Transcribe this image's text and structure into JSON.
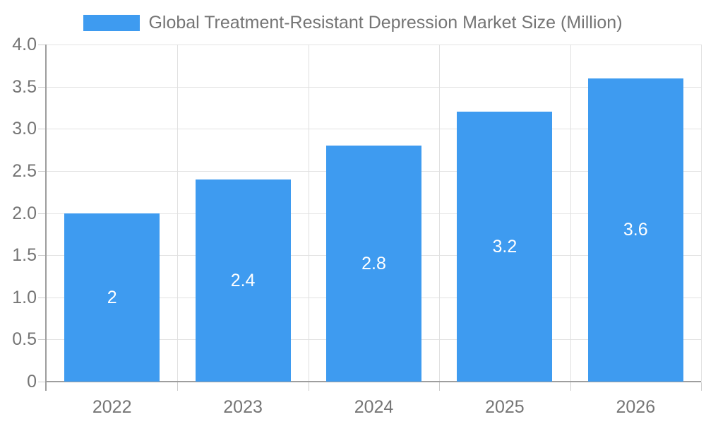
{
  "page": {
    "background": "#ffffff"
  },
  "legend": {
    "label": "Global Treatment-Resistant Depression Market Size (Million)",
    "swatch_color": "#3E9BF0"
  },
  "chart_data": {
    "type": "bar",
    "title": "Global Treatment-Resistant Depression Market Size (Million)",
    "categories": [
      "2022",
      "2023",
      "2024",
      "2025",
      "2026"
    ],
    "values": [
      2,
      2.4,
      2.8,
      3.2,
      3.6
    ],
    "bar_labels": [
      "2",
      "2.4",
      "2.8",
      "3.2",
      "3.6"
    ],
    "xlabel": "",
    "ylabel": "",
    "ylim": [
      0,
      4
    ],
    "y_tick_step": 0.5,
    "y_tick_labels": [
      "0",
      "0.5",
      "1.0",
      "1.5",
      "2.0",
      "2.5",
      "3.0",
      "3.5",
      "4.0"
    ],
    "grid": true,
    "legend_position": "top",
    "value_label_position": "inside-center",
    "colors": {
      "bar": "#3E9BF0",
      "bar_value_text": "#ffffff",
      "axis_text": "#757575",
      "legend_text": "#757575",
      "gridline": "#e3e3e3",
      "category_boundary_line": "#e0e0e0",
      "axis_line": "#9e9e9e",
      "tick": "#cccccc"
    }
  }
}
